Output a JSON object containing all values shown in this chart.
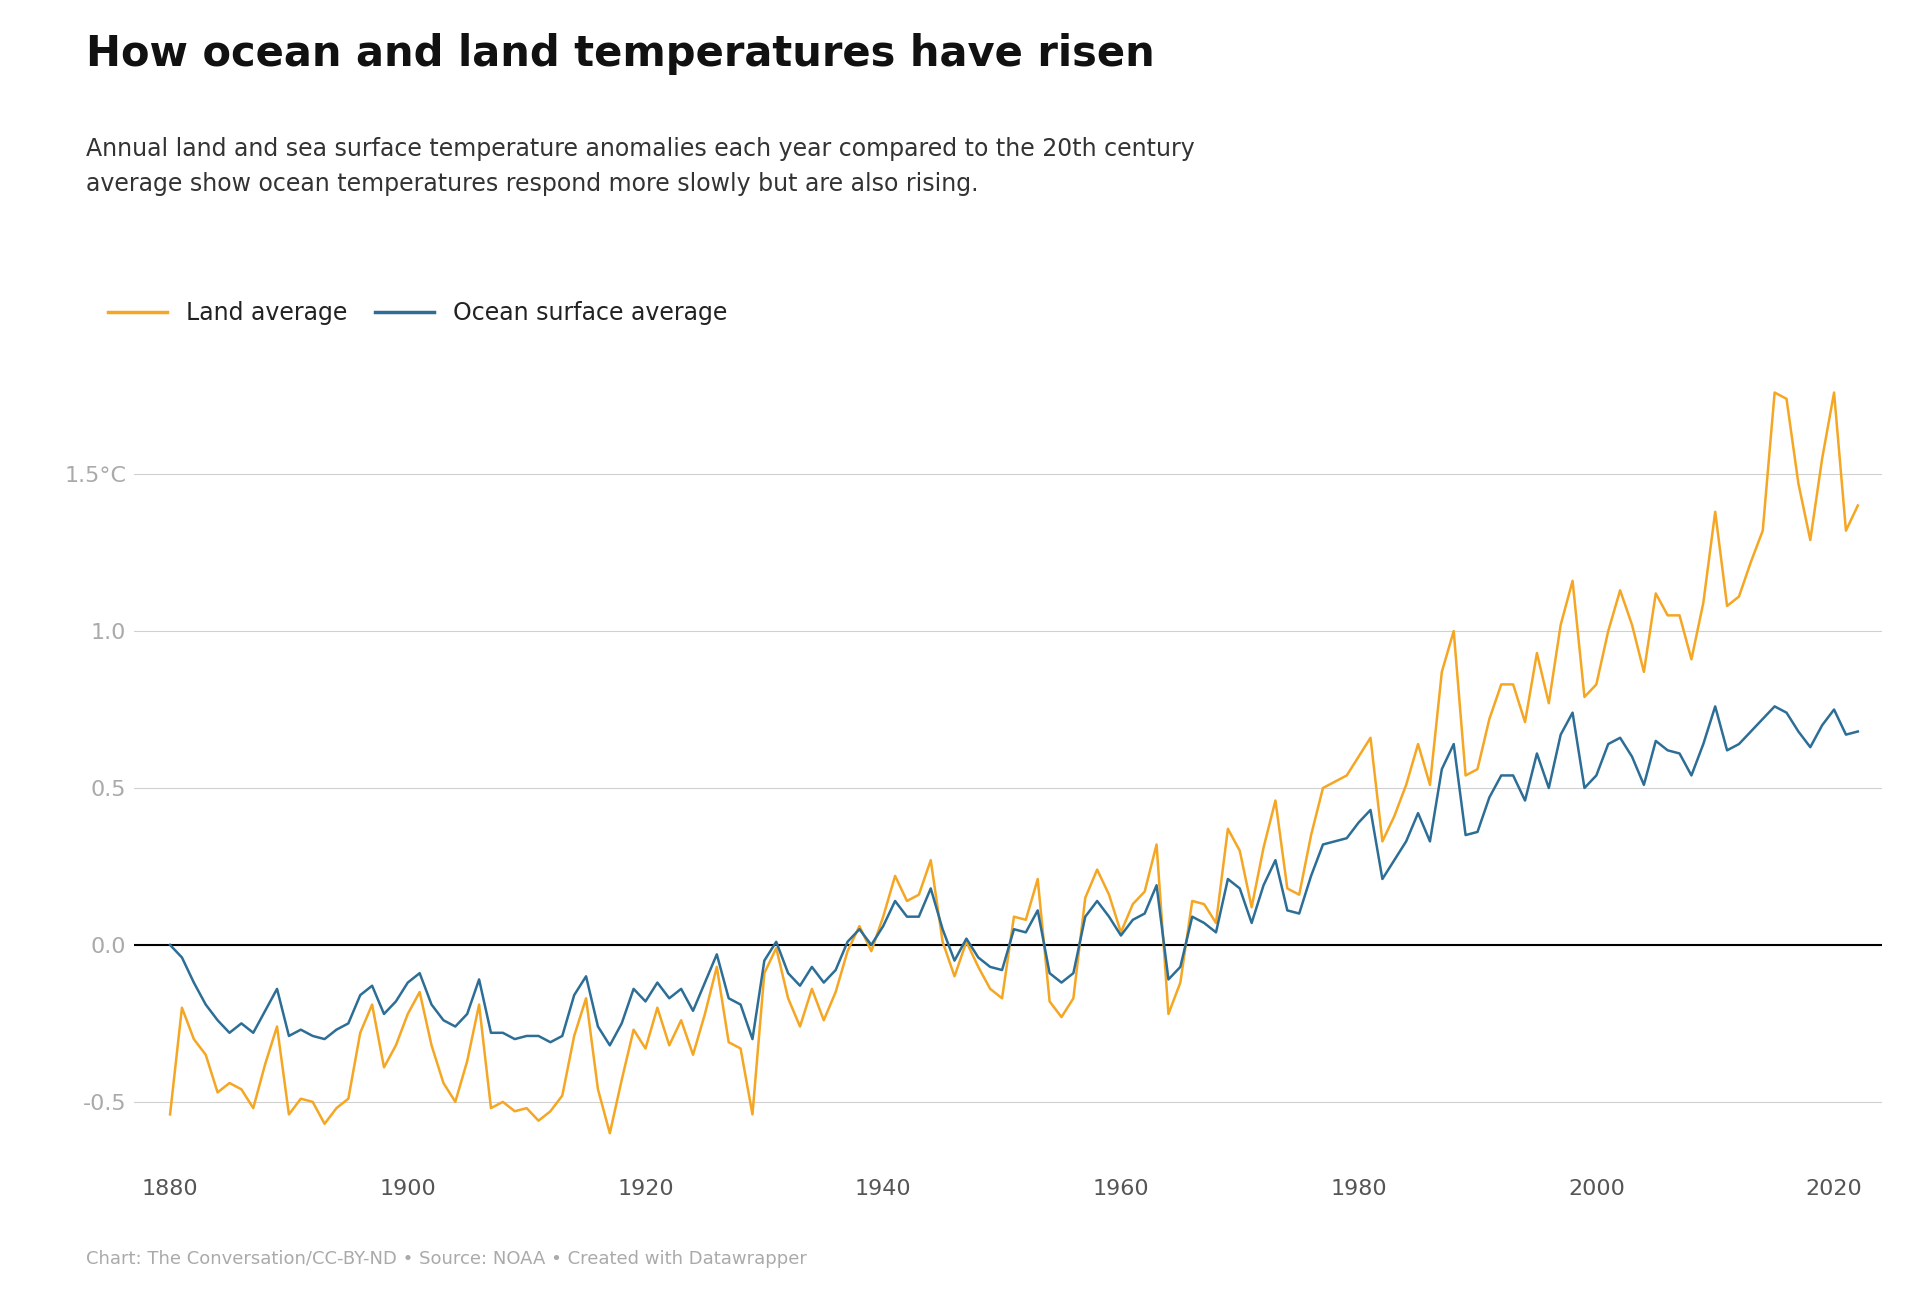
{
  "title": "How ocean and land temperatures have risen",
  "subtitle": "Annual land and sea surface temperature anomalies each year compared to the 20th century\naverage show ocean temperatures respond more slowly but are also rising.",
  "caption": "Chart: The Conversation/CC-BY-ND • Source: NOAA • Created with Datawrapper",
  "land_label": "Land average",
  "ocean_label": "Ocean surface average",
  "land_color": "#f5a623",
  "ocean_color": "#2c6e96",
  "background_color": "#ffffff",
  "title_fontsize": 30,
  "subtitle_fontsize": 17,
  "caption_fontsize": 13,
  "legend_fontsize": 17,
  "tick_fontsize": 16,
  "ylim": [
    -0.72,
    1.85
  ],
  "yticks": [
    -0.5,
    0.0,
    0.5,
    1.0,
    1.5
  ],
  "ytick_labels": [
    "-0.5",
    "0.0",
    "0.5",
    "1.0",
    "1.5°C"
  ],
  "xticks": [
    1880,
    1900,
    1920,
    1940,
    1960,
    1980,
    2000,
    2020
  ],
  "years": [
    1880,
    1881,
    1882,
    1883,
    1884,
    1885,
    1886,
    1887,
    1888,
    1889,
    1890,
    1891,
    1892,
    1893,
    1894,
    1895,
    1896,
    1897,
    1898,
    1899,
    1900,
    1901,
    1902,
    1903,
    1904,
    1905,
    1906,
    1907,
    1908,
    1909,
    1910,
    1911,
    1912,
    1913,
    1914,
    1915,
    1916,
    1917,
    1918,
    1919,
    1920,
    1921,
    1922,
    1923,
    1924,
    1925,
    1926,
    1927,
    1928,
    1929,
    1930,
    1931,
    1932,
    1933,
    1934,
    1935,
    1936,
    1937,
    1938,
    1939,
    1940,
    1941,
    1942,
    1943,
    1944,
    1945,
    1946,
    1947,
    1948,
    1949,
    1950,
    1951,
    1952,
    1953,
    1954,
    1955,
    1956,
    1957,
    1958,
    1959,
    1960,
    1961,
    1962,
    1963,
    1964,
    1965,
    1966,
    1967,
    1968,
    1969,
    1970,
    1971,
    1972,
    1973,
    1974,
    1975,
    1976,
    1977,
    1978,
    1979,
    1980,
    1981,
    1982,
    1983,
    1984,
    1985,
    1986,
    1987,
    1988,
    1989,
    1990,
    1991,
    1992,
    1993,
    1994,
    1995,
    1996,
    1997,
    1998,
    1999,
    2000,
    2001,
    2002,
    2003,
    2004,
    2005,
    2006,
    2007,
    2008,
    2009,
    2010,
    2011,
    2012,
    2013,
    2014,
    2015,
    2016,
    2017,
    2018,
    2019,
    2020,
    2021,
    2022
  ],
  "land_anomaly": [
    -0.54,
    -0.2,
    -0.3,
    -0.35,
    -0.47,
    -0.44,
    -0.46,
    -0.52,
    -0.38,
    -0.26,
    -0.54,
    -0.49,
    -0.5,
    -0.57,
    -0.52,
    -0.49,
    -0.28,
    -0.19,
    -0.39,
    -0.32,
    -0.22,
    -0.15,
    -0.32,
    -0.44,
    -0.5,
    -0.37,
    -0.19,
    -0.52,
    -0.5,
    -0.53,
    -0.52,
    -0.56,
    -0.53,
    -0.48,
    -0.29,
    -0.17,
    -0.46,
    -0.6,
    -0.43,
    -0.27,
    -0.33,
    -0.2,
    -0.32,
    -0.24,
    -0.35,
    -0.22,
    -0.07,
    -0.31,
    -0.33,
    -0.54,
    -0.09,
    -0.01,
    -0.17,
    -0.26,
    -0.14,
    -0.24,
    -0.15,
    -0.02,
    0.06,
    -0.02,
    0.09,
    0.22,
    0.14,
    0.16,
    0.27,
    0.01,
    -0.1,
    0.01,
    -0.07,
    -0.14,
    -0.17,
    0.09,
    0.08,
    0.21,
    -0.18,
    -0.23,
    -0.17,
    0.15,
    0.24,
    0.16,
    0.04,
    0.13,
    0.17,
    0.32,
    -0.22,
    -0.12,
    0.14,
    0.13,
    0.07,
    0.37,
    0.3,
    0.12,
    0.31,
    0.46,
    0.18,
    0.16,
    0.35,
    0.5,
    0.52,
    0.54,
    0.6,
    0.66,
    0.33,
    0.41,
    0.51,
    0.64,
    0.51,
    0.87,
    1.0,
    0.54,
    0.56,
    0.72,
    0.83,
    0.83,
    0.71,
    0.93,
    0.77,
    1.02,
    1.16,
    0.79,
    0.83,
    1.0,
    1.13,
    1.02,
    0.87,
    1.12,
    1.05,
    1.05,
    0.91,
    1.09,
    1.38,
    1.08,
    1.11,
    1.22,
    1.32,
    1.76,
    1.74,
    1.47,
    1.29,
    1.55,
    1.76,
    1.32,
    1.4
  ],
  "ocean_anomaly": [
    0.0,
    -0.04,
    -0.12,
    -0.19,
    -0.24,
    -0.28,
    -0.25,
    -0.28,
    -0.21,
    -0.14,
    -0.29,
    -0.27,
    -0.29,
    -0.3,
    -0.27,
    -0.25,
    -0.16,
    -0.13,
    -0.22,
    -0.18,
    -0.12,
    -0.09,
    -0.19,
    -0.24,
    -0.26,
    -0.22,
    -0.11,
    -0.28,
    -0.28,
    -0.3,
    -0.29,
    -0.29,
    -0.31,
    -0.29,
    -0.16,
    -0.1,
    -0.26,
    -0.32,
    -0.25,
    -0.14,
    -0.18,
    -0.12,
    -0.17,
    -0.14,
    -0.21,
    -0.12,
    -0.03,
    -0.17,
    -0.19,
    -0.3,
    -0.05,
    0.01,
    -0.09,
    -0.13,
    -0.07,
    -0.12,
    -0.08,
    0.01,
    0.05,
    0.0,
    0.06,
    0.14,
    0.09,
    0.09,
    0.18,
    0.05,
    -0.05,
    0.02,
    -0.04,
    -0.07,
    -0.08,
    0.05,
    0.04,
    0.11,
    -0.09,
    -0.12,
    -0.09,
    0.09,
    0.14,
    0.09,
    0.03,
    0.08,
    0.1,
    0.19,
    -0.11,
    -0.07,
    0.09,
    0.07,
    0.04,
    0.21,
    0.18,
    0.07,
    0.19,
    0.27,
    0.11,
    0.1,
    0.22,
    0.32,
    0.33,
    0.34,
    0.39,
    0.43,
    0.21,
    0.27,
    0.33,
    0.42,
    0.33,
    0.56,
    0.64,
    0.35,
    0.36,
    0.47,
    0.54,
    0.54,
    0.46,
    0.61,
    0.5,
    0.67,
    0.74,
    0.5,
    0.54,
    0.64,
    0.66,
    0.6,
    0.51,
    0.65,
    0.62,
    0.61,
    0.54,
    0.64,
    0.76,
    0.62,
    0.64,
    0.68,
    0.72,
    0.76,
    0.74,
    0.68,
    0.63,
    0.7,
    0.75,
    0.67,
    0.68
  ]
}
